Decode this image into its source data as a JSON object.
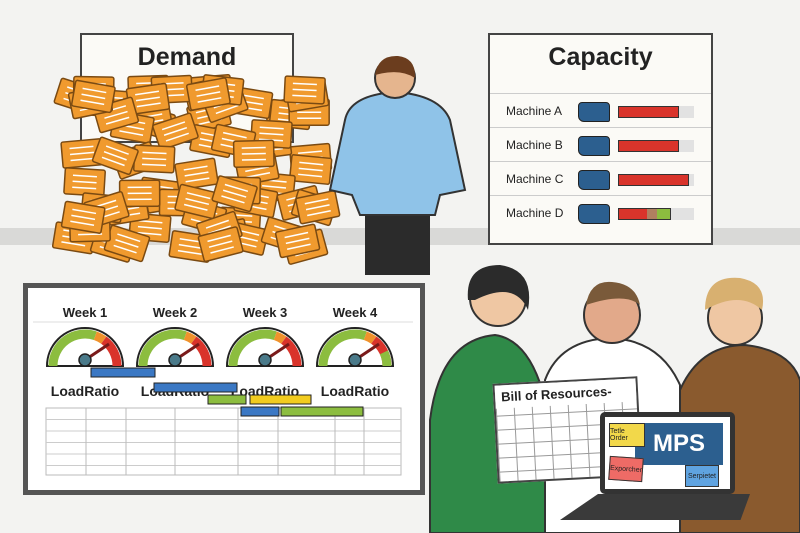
{
  "demand": {
    "title": "Demand"
  },
  "capacity": {
    "title": "Capacity",
    "machines": [
      {
        "label": "Machine A",
        "load": 0.8
      },
      {
        "label": "Machine B",
        "load": 0.8
      },
      {
        "label": "Machine C",
        "load": 0.93
      },
      {
        "label": "Machine D",
        "load": 0.7
      }
    ]
  },
  "dashboard": {
    "weeks": [
      {
        "label": "Week 1",
        "gauge_label": "LoadRatio"
      },
      {
        "label": "Week 2",
        "gauge_label": "LoadRatio"
      },
      {
        "label": "Week 3",
        "gauge_label": "LoadRatio"
      },
      {
        "label": "Week 4",
        "gauge_label": "LoadRatio"
      }
    ]
  },
  "paper": {
    "title": "Bill of Resources-"
  },
  "laptop": {
    "screen_title": "MPS",
    "notes": [
      "Tetle Order",
      "Exporcher",
      "Serpietet"
    ]
  },
  "colors": {
    "orange": "#f09a2e",
    "red": "#d9342b",
    "green": "#8cbd3f",
    "blue": "#3b78c4",
    "yellow": "#f2cc1f",
    "navy": "#2c5f8f"
  }
}
